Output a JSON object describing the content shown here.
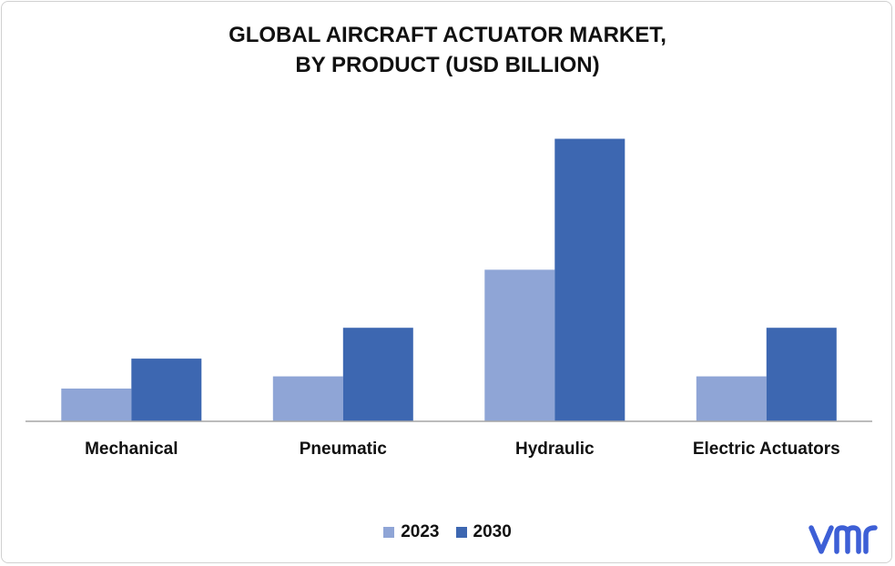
{
  "chart_data": {
    "type": "bar",
    "title_lines": [
      "GLOBAL AIRCRAFT ACTUATOR MARKET,",
      "BY PRODUCT (USD BILLION)"
    ],
    "categories": [
      "Mechanical",
      "Pneumatic",
      "Hydraulic",
      "Electric Actuators"
    ],
    "series": [
      {
        "name": "2023",
        "values": [
          3.5,
          4.8,
          16.2,
          4.8
        ],
        "color": "#8fa5d6"
      },
      {
        "name": "2030",
        "values": [
          6.7,
          10.0,
          30.2,
          10.0
        ],
        "color": "#3d67b1"
      }
    ],
    "ylim": [
      0,
      32
    ],
    "grid": false,
    "legend_position": "bottom"
  },
  "logo": {
    "icon": "vmr-logo-icon",
    "color": "#3d5fd6"
  }
}
